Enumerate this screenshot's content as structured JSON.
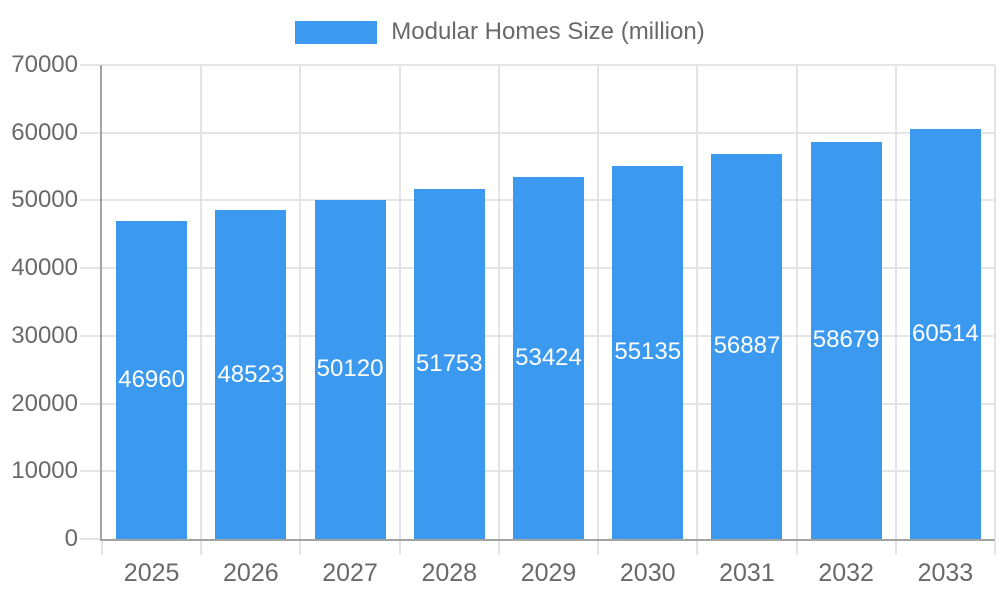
{
  "legend": {
    "label": "Modular Homes Size (million)"
  },
  "colors": {
    "bar": "#3B99F0",
    "data_label": "#FFFFFF",
    "axis_text": "#696969",
    "grid_line": "#E4E4E4",
    "axis_line": "#A3A3A3",
    "background": "#FFFFFF"
  },
  "chart_data": {
    "type": "bar",
    "title": "",
    "categories": [
      "2025",
      "2026",
      "2027",
      "2028",
      "2029",
      "2030",
      "2031",
      "2032",
      "2033"
    ],
    "series": [
      {
        "name": "Modular Homes Size (million)",
        "values": [
          46960,
          48523,
          50120,
          51753,
          53424,
          55135,
          56887,
          58679,
          60514
        ]
      }
    ],
    "xlabel": "",
    "ylabel": "",
    "ylim": [
      0,
      70000
    ],
    "ytick_step": 10000,
    "ytick_labels": [
      "0",
      "10000",
      "20000",
      "30000",
      "40000",
      "50000",
      "60000",
      "70000"
    ],
    "grid": true,
    "legend_position": "top-center",
    "data_labels_position": "inside-middle"
  }
}
